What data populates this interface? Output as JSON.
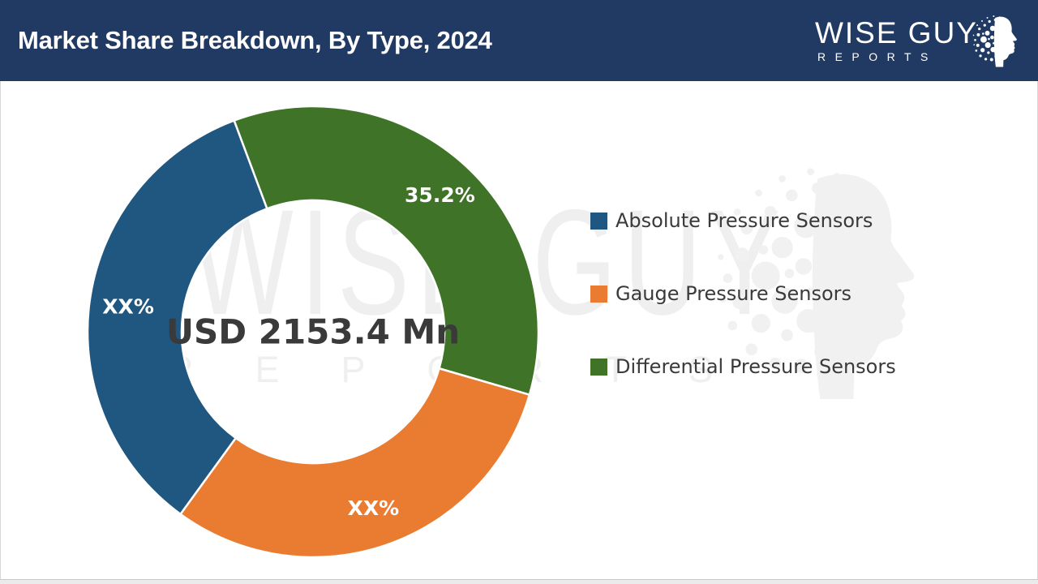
{
  "header": {
    "title": "Market Share Breakdown, By Type, 2024",
    "logo": {
      "line1": "WISE GUY",
      "line2": "REPORTS"
    }
  },
  "watermark": {
    "line1": "WISE GUY",
    "line2": "REPORTS"
  },
  "chart_data": {
    "type": "donut",
    "title": "Market Share Breakdown, By Type, 2024",
    "center_label": "USD 2153.4 Mn",
    "start_angle_deg": -20.5,
    "legend_position": "right",
    "segments": [
      {
        "name": "Differential Pressure Sensors",
        "label": "35.2%",
        "value_pct": 35.2,
        "color": "#3F7428"
      },
      {
        "name": "Gauge Pressure Sensors",
        "label": "XX%",
        "value_pct": 30.5,
        "color": "#EA7C31"
      },
      {
        "name": "Absolute Pressure Sensors",
        "label": "XX%",
        "value_pct": 34.3,
        "color": "#1F5780"
      }
    ],
    "legend_order": [
      2,
      1,
      0
    ]
  },
  "colors": {
    "header_bg": "#213A64",
    "watermark": "#EFEFEF",
    "center_text": "#3A3A3A",
    "legend_text": "#3A3A3A"
  }
}
